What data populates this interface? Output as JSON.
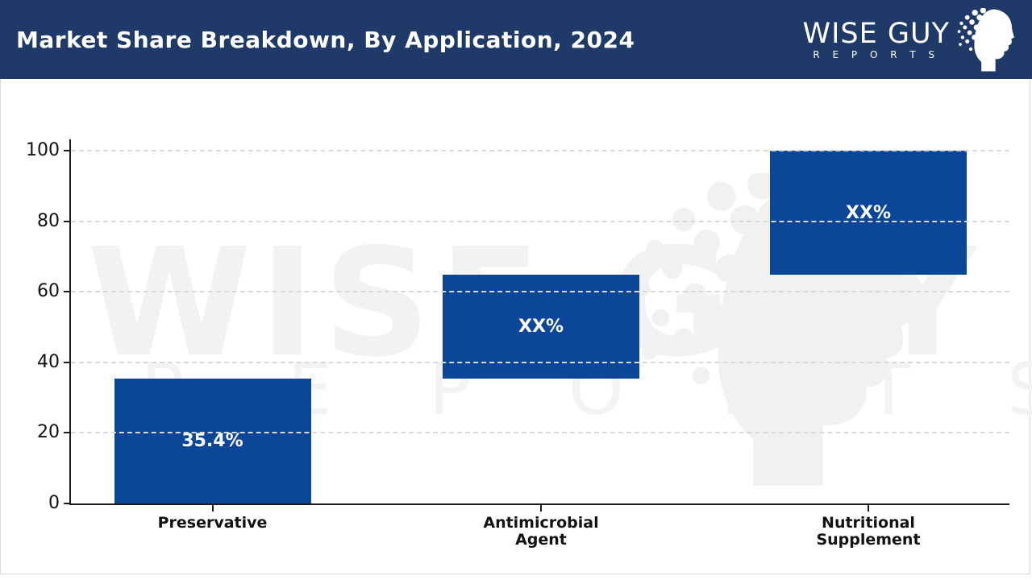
{
  "header": {
    "title": "Market Share Breakdown, By Application, 2024",
    "logo": {
      "brand_line1": "WISE GUY",
      "brand_line2": "R E P O R T S"
    }
  },
  "watermark": {
    "line1": "WISE GUY",
    "line2": "R E P O R T S"
  },
  "chart_data": {
    "type": "bar",
    "variant": "waterfall",
    "title": "Market Share Breakdown, By Application, 2024",
    "categories": [
      "Preservative",
      "Antimicrobial\nAgent",
      "Nutritional\nSupplement"
    ],
    "segments": [
      {
        "category": "Preservative",
        "start": 0,
        "end": 35.4,
        "label": "35.4%"
      },
      {
        "category": "Antimicrobial Agent",
        "start": 35.4,
        "end": 64.8,
        "label": "XX%"
      },
      {
        "category": "Nutritional Supplement",
        "start": 64.8,
        "end": 100,
        "label": "XX%"
      }
    ],
    "ylim": [
      0,
      100
    ],
    "yticks": [
      0,
      20,
      40,
      60,
      80,
      100
    ],
    "grid": "horizontal-dashed",
    "legend": "none",
    "colors": {
      "bar": "#0b4699",
      "bar_label": "#ffffff",
      "grid": "#d9d9d9",
      "axis": "#1c1c1c",
      "header_bg": "#1f3a68",
      "watermark": "#f2f2f2"
    }
  }
}
